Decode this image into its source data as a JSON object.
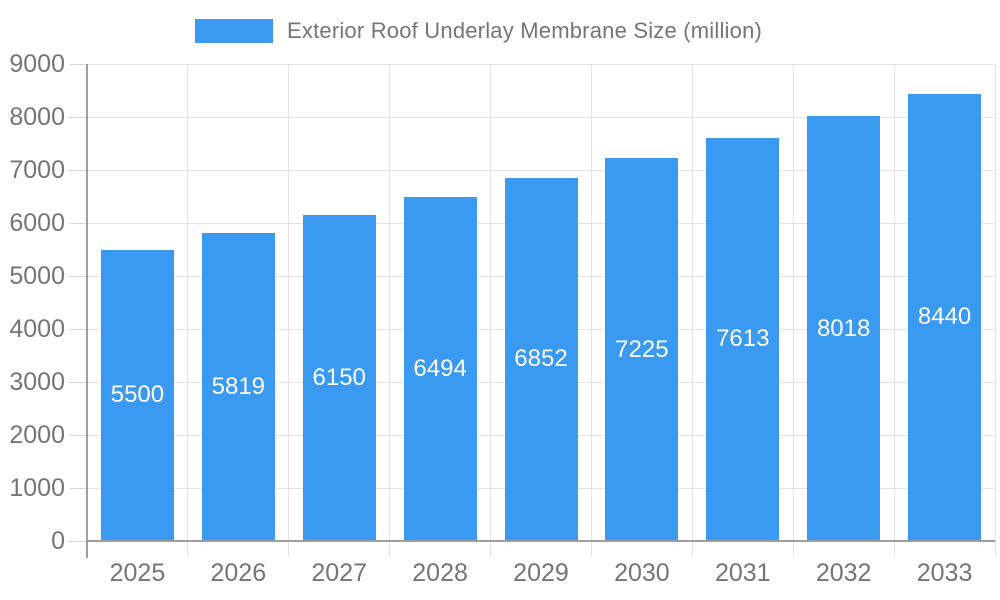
{
  "legend": {
    "label": "Exterior Roof Underlay Membrane Size (million)"
  },
  "chart_data": {
    "type": "bar",
    "title": "Exterior Roof Underlay Membrane Size (million)",
    "categories": [
      "2025",
      "2026",
      "2027",
      "2028",
      "2029",
      "2030",
      "2031",
      "2032",
      "2033"
    ],
    "values": [
      5500,
      5819,
      6150,
      6494,
      6852,
      7225,
      7613,
      8018,
      8440
    ],
    "xlabel": "",
    "ylabel": "",
    "ylim": [
      0,
      9000
    ],
    "ytick_step": 1000,
    "yticks": [
      "0",
      "1000",
      "2000",
      "3000",
      "4000",
      "5000",
      "6000",
      "7000",
      "8000",
      "9000"
    ],
    "grid": true,
    "legend_position": "top",
    "value_labels": "inside-center",
    "colors": {
      "bar": "#3a99f0",
      "grid": "#e3e3e3",
      "axis_line": "#9e9e9e",
      "tick": "#d6d6d6",
      "axis_text": "#757575",
      "value_text": "#ffffff",
      "background": "#ffffff"
    }
  }
}
